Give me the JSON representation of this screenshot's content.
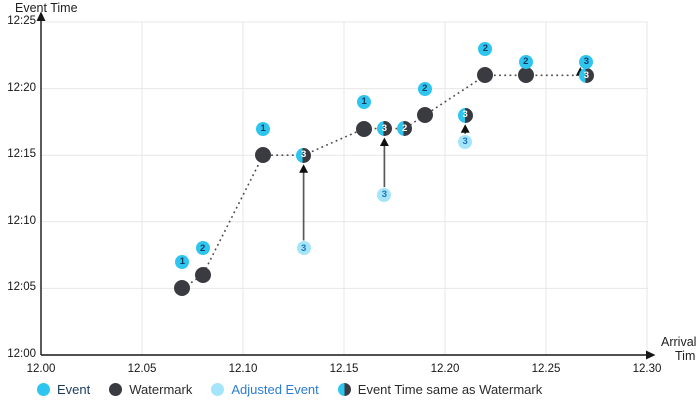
{
  "labels": {
    "y_axis": "Event Time",
    "x_axis_line1": "Arrival",
    "x_axis_line2": "Time"
  },
  "colors": {
    "event": "#2ec5ee",
    "watermark": "#3a3a41",
    "adjusted_event": "#a5e5f9",
    "event_text": "#16395e",
    "adjusted_text": "#2272b9",
    "half_text": "#ffffff",
    "grid": "#e7e7e7",
    "axis": "#161616",
    "dotted": "#4d4d4d",
    "arrow_shaft": "#58585a",
    "arrow_head": "#101010",
    "tick_text": "#161616",
    "legend_event_text": "#1b3a5e",
    "legend_dark_text": "#2b2b2b",
    "legend_adjusted_text": "#2b7cd3"
  },
  "legend": {
    "items": [
      {
        "label": "Event",
        "swatch": "event",
        "text_color_key": "legend_event_text"
      },
      {
        "label": "Watermark",
        "swatch": "watermark",
        "text_color_key": "legend_dark_text"
      },
      {
        "label": "Adjusted Event",
        "swatch": "adjusted",
        "text_color_key": "legend_adjusted_text"
      },
      {
        "label": "Event Time same as Watermark",
        "swatch": "half",
        "text_color_key": "legend_dark_text"
      }
    ]
  },
  "chart_data": {
    "type": "scatter",
    "xlabel": "Arrival Time",
    "ylabel": "Event Time",
    "xlim": [
      12.0,
      12.3
    ],
    "ylim": [
      "12:00",
      "12:25"
    ],
    "grid": true,
    "legend_position": "bottom",
    "x_ticks": [
      "12.00",
      "12.05",
      "12.10",
      "12.15",
      "12.20",
      "12.25",
      "12.30"
    ],
    "y_ticks": [
      "12:00",
      "12:05",
      "12:10",
      "12:15",
      "12:20",
      "12:25"
    ],
    "events": [
      {
        "device": 1,
        "arrival": 12.07,
        "event_time": "12:07"
      },
      {
        "device": 2,
        "arrival": 12.08,
        "event_time": "12:08"
      },
      {
        "device": 1,
        "arrival": 12.11,
        "event_time": "12:17"
      },
      {
        "device": 1,
        "arrival": 12.16,
        "event_time": "12:19"
      },
      {
        "device": 2,
        "arrival": 12.19,
        "event_time": "12:20"
      },
      {
        "device": 2,
        "arrival": 12.22,
        "event_time": "12:23"
      },
      {
        "device": 2,
        "arrival": 12.24,
        "event_time": "12:22"
      },
      {
        "device": 3,
        "arrival": 12.27,
        "event_time": "12:22"
      }
    ],
    "watermarks": [
      {
        "arrival": 12.07,
        "time": "12:05"
      },
      {
        "arrival": 12.08,
        "time": "12:06"
      },
      {
        "arrival": 12.11,
        "time": "12:15"
      },
      {
        "arrival": 12.16,
        "time": "12:17"
      },
      {
        "arrival": 12.19,
        "time": "12:18"
      },
      {
        "arrival": 12.22,
        "time": "12:21"
      },
      {
        "arrival": 12.24,
        "time": "12:21"
      }
    ],
    "adjusted_events": [
      {
        "device": 3,
        "arrival": 12.13,
        "original_time": "12:08",
        "adjusted_time": "12:15"
      },
      {
        "device": 3,
        "arrival": 12.17,
        "original_time": "12:12",
        "adjusted_time": "12:17"
      },
      {
        "device": 3,
        "arrival": 12.21,
        "original_time": "12:16",
        "adjusted_time": "12:18"
      }
    ],
    "same_as_watermark": [
      {
        "device": 3,
        "arrival": 12.13,
        "time": "12:15"
      },
      {
        "device": 3,
        "arrival": 12.17,
        "time": "12:17"
      },
      {
        "device": 2,
        "arrival": 12.18,
        "time": "12:17"
      },
      {
        "device": 3,
        "arrival": 12.21,
        "time": "12:18"
      },
      {
        "device": 3,
        "arrival": 12.27,
        "time": "12:21"
      }
    ],
    "watermark_line": [
      [
        12.07,
        "12:05"
      ],
      [
        12.08,
        "12:06"
      ],
      [
        12.11,
        "12:15"
      ],
      [
        12.13,
        "12:15"
      ],
      [
        12.16,
        "12:17"
      ],
      [
        12.17,
        "12:17"
      ],
      [
        12.18,
        "12:17"
      ],
      [
        12.19,
        "12:18"
      ],
      [
        12.22,
        "12:21"
      ],
      [
        12.24,
        "12:21"
      ],
      [
        12.264,
        "12:21"
      ]
    ],
    "watermark_advance_arrow": {
      "arrival": 12.267,
      "from_time": "12:21",
      "to_time": "12:22"
    }
  }
}
